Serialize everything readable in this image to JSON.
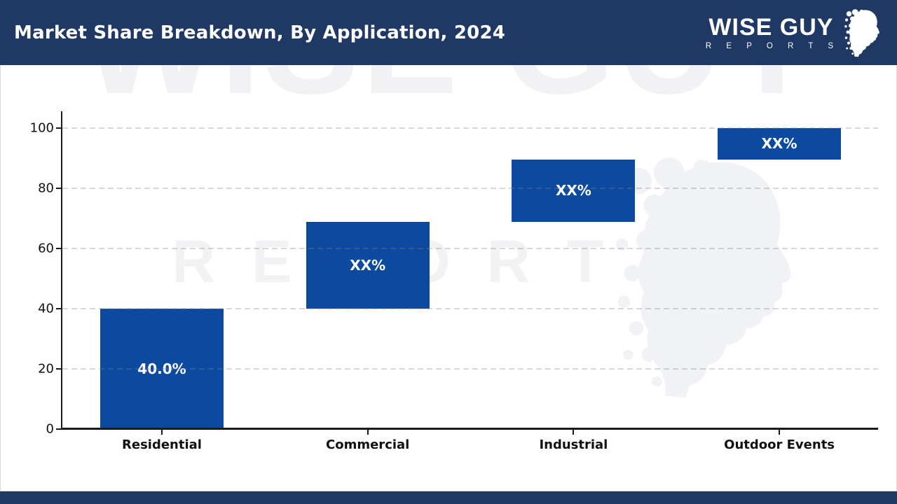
{
  "header": {
    "title": "Market Share Breakdown, By Application, 2024",
    "logo": {
      "line1": "WISE GUY",
      "line2": "R E P O R T S"
    }
  },
  "watermark": {
    "line1": "WISE GUY",
    "line2": "R E P O R T S"
  },
  "colors": {
    "header_footer_bg": "#1f3864",
    "bar": "#0b4a9e",
    "bar_label_text": "#ffffff",
    "title_text": "#ffffff",
    "axis": "#1a1a1a",
    "watermark": "#f2f2f4",
    "gridline_base": "#dadada"
  },
  "chart_data": {
    "type": "bar",
    "subtype": "waterfall",
    "title": "Market Share Breakdown, By Application, 2024",
    "categories": [
      "Residential",
      "Commercial",
      "Industrial",
      "Outdoor Events"
    ],
    "segments": [
      {
        "category": "Residential",
        "start": 0,
        "end": 40,
        "label": "40.0%"
      },
      {
        "category": "Commercial",
        "start": 40,
        "end": 68.8,
        "label": "XX%"
      },
      {
        "category": "Industrial",
        "start": 68.8,
        "end": 89.5,
        "label": "XX%"
      },
      {
        "category": "Outdoor Events",
        "start": 89.5,
        "end": 100,
        "label": "XX%"
      }
    ],
    "ylim": [
      0,
      100
    ],
    "yticks": [
      0,
      20,
      40,
      60,
      80,
      100
    ],
    "xlabel": "",
    "ylabel": "",
    "grid": "horizontal-dashed-over-bars",
    "legend": "none"
  }
}
